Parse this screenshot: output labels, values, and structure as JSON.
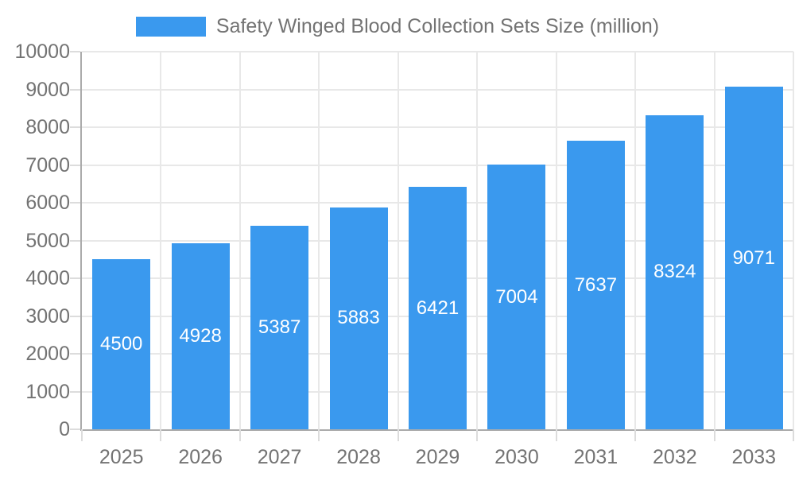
{
  "chart_data": {
    "type": "bar",
    "title": "Safety Winged Blood Collection Sets Size (million)",
    "legend": {
      "label": "Safety Winged Blood Collection Sets Size (million)",
      "position": "top",
      "swatch_color": "#3A99EE"
    },
    "categories": [
      "2025",
      "2026",
      "2027",
      "2028",
      "2029",
      "2030",
      "2031",
      "2032",
      "2033"
    ],
    "series": [
      {
        "name": "Safety Winged Blood Collection Sets Size (million)",
        "values": [
          4500,
          4928,
          5387,
          5883,
          6421,
          7004,
          7637,
          8324,
          9071
        ]
      }
    ],
    "xlabel": "",
    "ylabel": "",
    "ylim": [
      0,
      10000
    ],
    "ytick_step": 1000,
    "ytick_labels": [
      "0",
      "1000",
      "2000",
      "3000",
      "4000",
      "5000",
      "6000",
      "7000",
      "8000",
      "9000",
      "10000"
    ],
    "grid": true,
    "value_labels_shown": true,
    "colors": {
      "bar": "#3A99EE",
      "grid": "#E8E8E8",
      "tick": "#DCDCDC",
      "axis": "#ABABAB",
      "text": "#737373",
      "value_label": "#FFFFFF",
      "background": "#FFFFFF"
    }
  }
}
